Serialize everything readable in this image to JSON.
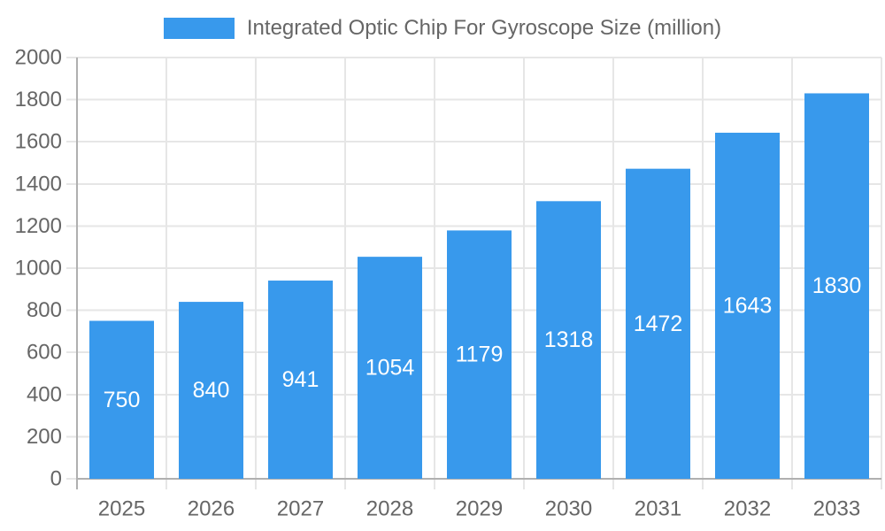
{
  "chart_data": {
    "type": "bar",
    "title": "Integrated Optic Chip For Gyroscope Size (million)",
    "categories": [
      "2025",
      "2026",
      "2027",
      "2028",
      "2029",
      "2030",
      "2031",
      "2032",
      "2033"
    ],
    "values": [
      750,
      840,
      941,
      1054,
      1179,
      1318,
      1472,
      1643,
      1830
    ],
    "xlabel": "",
    "ylabel": "",
    "ylim": [
      0,
      2000
    ],
    "ytick_step": 200,
    "ytick_labels": [
      "0",
      "200",
      "400",
      "600",
      "800",
      "1000",
      "1200",
      "1400",
      "1600",
      "1800",
      "2000"
    ],
    "grid": true,
    "legend_position": "top",
    "bar_color": "#3899EC",
    "bar_label_color": "#FFFFFF",
    "axis_color": "#B0B0B0",
    "grid_color": "#E6E6E6",
    "tick_text_color": "#666666"
  }
}
